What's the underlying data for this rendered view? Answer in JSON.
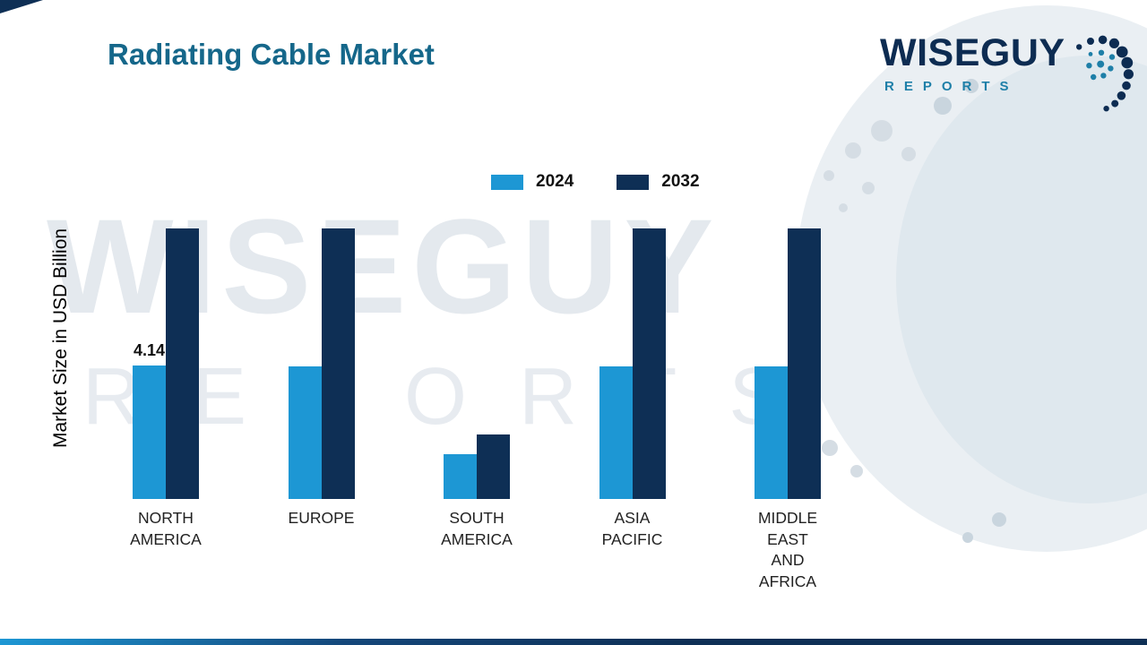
{
  "page": {
    "title": "Radiating Cable Market",
    "ylabel": "Market Size in USD Billion",
    "watermark_line1": "WISEGUY",
    "watermark_line2": "REPORTS"
  },
  "logo": {
    "line1": "WISEGUY",
    "line2": "REPORTS"
  },
  "legend": [
    {
      "label": "2024",
      "color": "#1d97d4"
    },
    {
      "label": "2032",
      "color": "#0e2f55"
    }
  ],
  "chart_data": {
    "type": "bar",
    "title": "Radiating Cable Market",
    "ylabel": "Market Size in USD Billion",
    "xlabel": "",
    "categories": [
      "NORTH AMERICA",
      "EUROPE",
      "SOUTH AMERICA",
      "ASIA PACIFIC",
      "MIDDLE EAST AND AFRICA"
    ],
    "series": [
      {
        "name": "2024",
        "color": "#1d97d4",
        "values": [
          4.14,
          4.1,
          1.4,
          4.1,
          4.1
        ]
      },
      {
        "name": "2032",
        "color": "#0e2f55",
        "values": [
          8.4,
          8.4,
          2.0,
          8.4,
          8.4
        ]
      }
    ],
    "value_labels": [
      {
        "series": "2024",
        "category": "NORTH AMERICA",
        "text": "4.14"
      }
    ],
    "ylim": [
      0,
      9
    ],
    "grid": false,
    "legend_position": "top"
  }
}
